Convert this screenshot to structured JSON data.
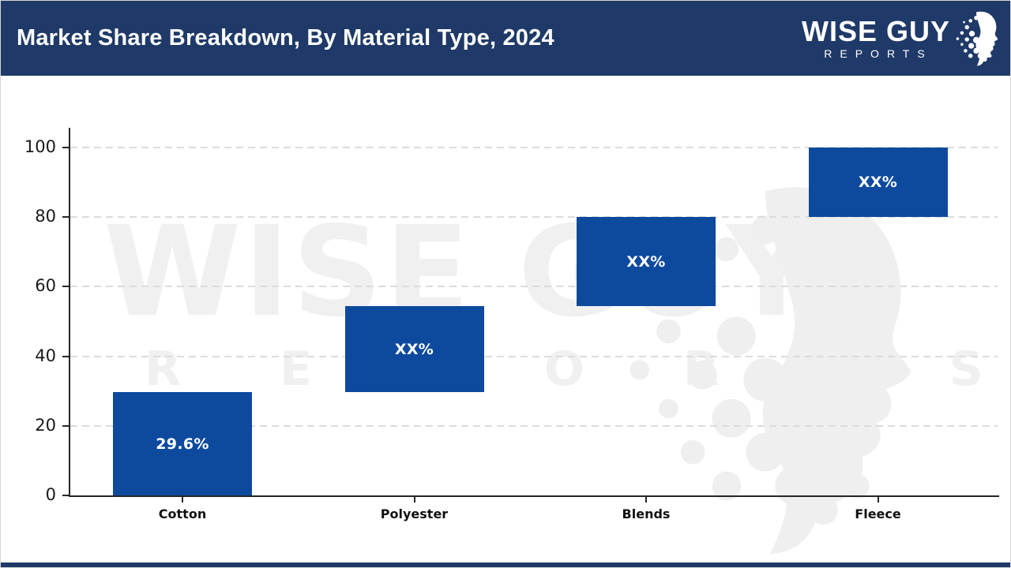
{
  "header": {
    "title": "Market Share Breakdown, By Material Type, 2024",
    "logo": {
      "line1": "WISE GUY",
      "line2": "REPORTS"
    }
  },
  "watermark": {
    "line1": "WISE GUY",
    "line2": "R E P O R T S"
  },
  "colors": {
    "navy": "#1f3a68",
    "bar_blue": "#0d4a9e",
    "watermark_gray": "#f0f0f0",
    "grid_gray": "#dcdcdc",
    "axis_black": "#262626",
    "bar_label_white": "#ffffff"
  },
  "chart_data": {
    "type": "bar",
    "subtype": "waterfall-stacked",
    "title": "Market Share Breakdown, By Material Type, 2024",
    "xlabel": "",
    "ylabel": "",
    "ylim": [
      0,
      100
    ],
    "yticks": [
      0,
      20,
      40,
      60,
      80,
      100
    ],
    "grid": true,
    "grid_style": "dashed",
    "legend": "none",
    "categories": [
      "Cotton",
      "Polyester",
      "Blends",
      "Fleece"
    ],
    "values": [
      29.6,
      24.8,
      25.6,
      20
    ],
    "segments": [
      {
        "category": "Cotton",
        "start": 0,
        "end": 29.6,
        "label": "29.6%"
      },
      {
        "category": "Polyester",
        "start": 29.6,
        "end": 54.4,
        "label": "XX%"
      },
      {
        "category": "Blends",
        "start": 54.4,
        "end": 80,
        "label": "XX%"
      },
      {
        "category": "Fleece",
        "start": 80,
        "end": 100,
        "label": "XX%"
      }
    ]
  }
}
